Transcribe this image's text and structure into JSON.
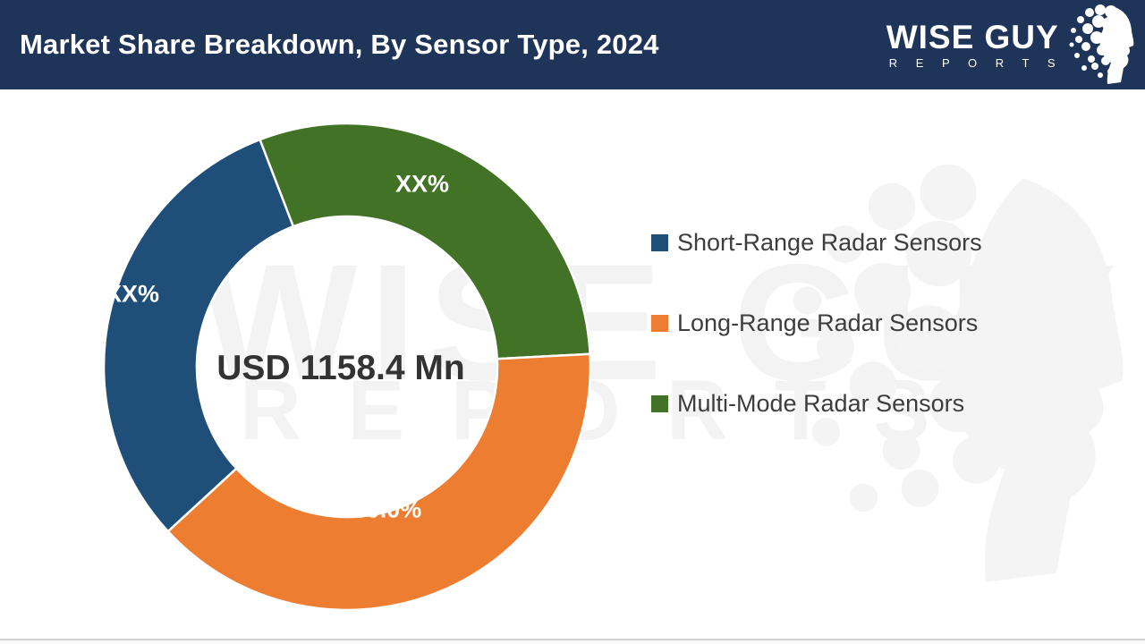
{
  "header": {
    "title": "Market Share Breakdown, By Sensor Type, 2024",
    "logo": {
      "line1": "WISE GUY",
      "line2": "R E P O R T S"
    }
  },
  "watermark": {
    "line1": "WISE GUY",
    "line2": "REPORTS"
  },
  "chart_data": {
    "type": "pie",
    "subtype": "donut",
    "title": "Market Share Breakdown, By Sensor Type, 2024",
    "center_label": "USD 1158.4 Mn",
    "start_angle_deg_clockwise_from_top": -21,
    "legend_position": "right",
    "slices": [
      {
        "name": "Multi-Mode Radar Sensors",
        "label": "XX%",
        "value": 30,
        "color": "#417226"
      },
      {
        "name": "Long-Range Radar Sensors",
        "label": "39.0%",
        "value": 39,
        "color": "#ED7D31"
      },
      {
        "name": "Short-Range Radar Sensors",
        "label": "XX%",
        "value": 31,
        "color": "#1F4E79"
      }
    ]
  },
  "legend": {
    "items": [
      {
        "label": "Short-Range Radar Sensors",
        "color": "#1F4E79"
      },
      {
        "label": "Long-Range Radar Sensors",
        "color": "#ED7D31"
      },
      {
        "label": "Multi-Mode Radar Sensors",
        "color": "#417226"
      }
    ]
  },
  "colors": {
    "header_bg": "#1F3459",
    "center_text": "#333333",
    "legend_text": "#3d3d3d"
  }
}
